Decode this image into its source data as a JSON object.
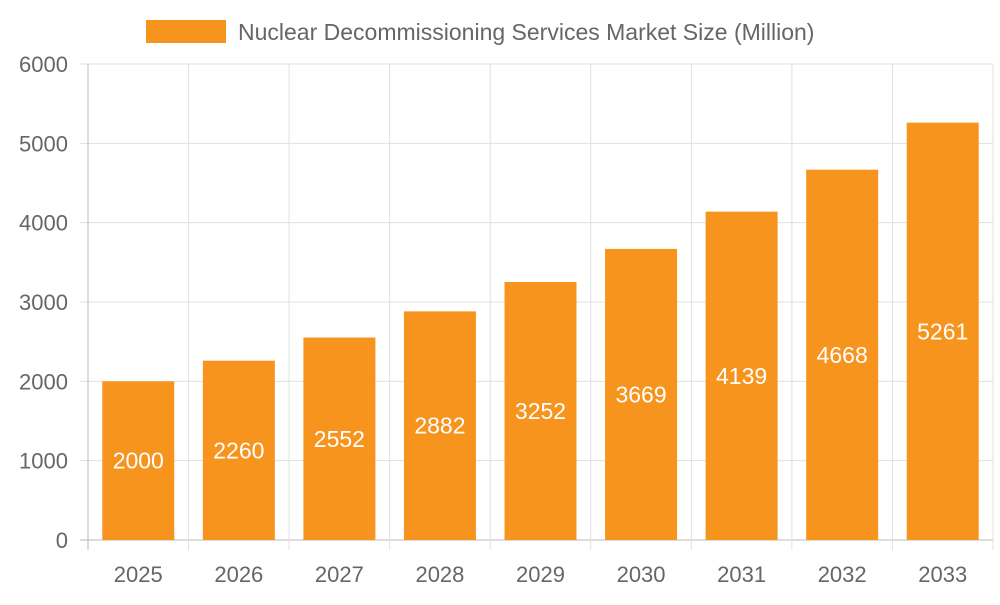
{
  "chart_data": {
    "type": "bar",
    "title": "",
    "xlabel": "",
    "ylabel": "",
    "categories": [
      "2025",
      "2026",
      "2027",
      "2028",
      "2029",
      "2030",
      "2031",
      "2032",
      "2033"
    ],
    "series": [
      {
        "name": "Nuclear Decommissioning Services Market Size (Million)",
        "values": [
          2000,
          2260,
          2552,
          2882,
          3252,
          3669,
          4139,
          4668,
          5261
        ],
        "color": "#F7941E"
      }
    ],
    "ylim": [
      0,
      6000
    ],
    "yticks": [
      0,
      1000,
      2000,
      3000,
      4000,
      5000,
      6000
    ],
    "grid": true,
    "legend_position": "top",
    "data_labels": true
  }
}
